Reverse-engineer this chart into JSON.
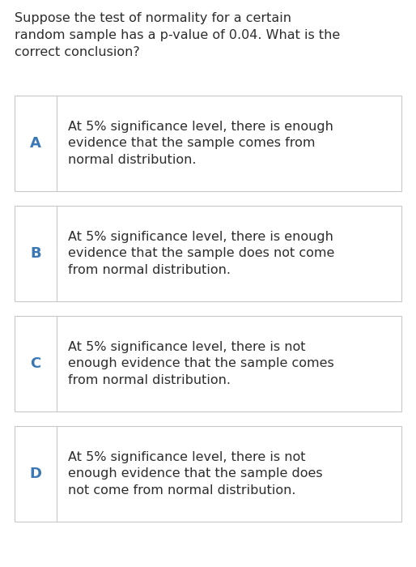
{
  "question": "Suppose the test of normality for a certain\nrandom sample has a p-value of 0.04. What is the\ncorrect conclusion?",
  "options": [
    {
      "label": "A",
      "text": "At 5% significance level, there is enough\nevidence that the sample comes from\nnormal distribution."
    },
    {
      "label": "B",
      "text": "At 5% significance level, there is enough\nevidence that the sample does not come\nfrom normal distribution."
    },
    {
      "label": "C",
      "text": "At 5% significance level, there is not\nenough evidence that the sample comes\nfrom normal distribution."
    },
    {
      "label": "D",
      "text": "At 5% significance level, there is not\nenough evidence that the sample does\nnot come from normal distribution."
    }
  ],
  "background_color": "#ffffff",
  "box_border_color": "#c8c8c8",
  "label_color": "#3a78b5",
  "text_color": "#2d2d2d",
  "question_color": "#2d2d2d",
  "question_fontsize": 11.5,
  "label_fontsize": 13.0,
  "option_fontsize": 11.5,
  "divider_color": "#c8c8c8",
  "fig_width": 5.14,
  "fig_height": 7.0,
  "dpi": 100
}
